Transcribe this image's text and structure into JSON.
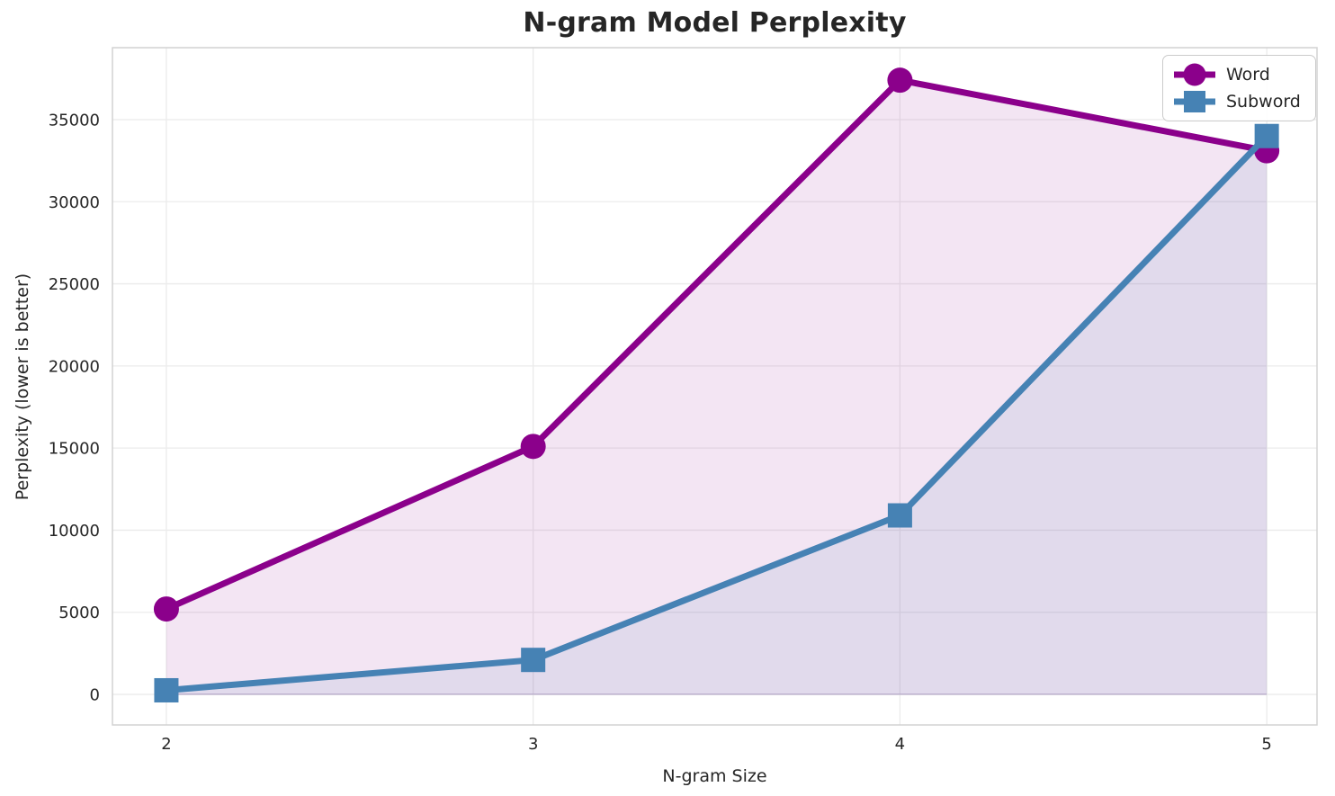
{
  "chart_data": {
    "type": "line",
    "title": "N-gram Model Perplexity",
    "xlabel": "N-gram Size",
    "ylabel": "Perplexity (lower is better)",
    "x": [
      2,
      3,
      4,
      5
    ],
    "series": [
      {
        "name": "Word",
        "marker": "circle",
        "color": "#8B008B",
        "values": [
          5200,
          15100,
          37400,
          33100
        ]
      },
      {
        "name": "Subword",
        "marker": "square",
        "color": "#4682B4",
        "values": [
          250,
          2100,
          10900,
          34000
        ]
      }
    ],
    "xticks": [
      2,
      3,
      4,
      5
    ],
    "yticks": [
      0,
      5000,
      10000,
      15000,
      20000,
      25000,
      30000,
      35000
    ],
    "xlim": [
      1.853,
      5.137
    ],
    "ylim": [
      -1860,
      39380
    ],
    "grid": true,
    "area_fill": true,
    "fill_opacity": 0.1,
    "baseline": 0,
    "legend_position": "upper right"
  },
  "style": {
    "grid_color": "#ebebeb",
    "spine_color": "#d2d2d2",
    "text_color": "#262626",
    "background": "#ffffff",
    "line_width": 7,
    "marker_radius": 14,
    "square_size": 27
  }
}
